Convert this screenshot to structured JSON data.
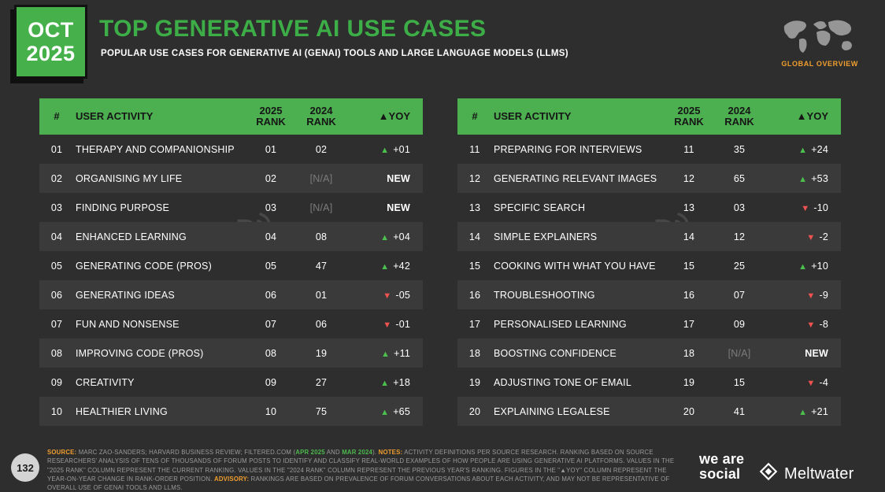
{
  "page": {
    "date_badge": {
      "month": "OCT",
      "year": "2025"
    },
    "title": "TOP GENERATIVE AI USE CASES",
    "subtitle": "POPULAR USE CASES FOR GENERATIVE AI (GENAI) TOOLS AND LARGE LANGUAGE MODELS (LLMS)",
    "region_label": "GLOBAL OVERVIEW",
    "page_number": "132"
  },
  "colors": {
    "accent_green": "#4caf50",
    "title_green": "#3dae47",
    "up_green": "#4cc04f",
    "down_red": "#ef5350",
    "label_orange": "#f09e2e",
    "background": "#2e2e2e"
  },
  "table_headers": {
    "num": "#",
    "activity": "USER ACTIVITY",
    "rank2025": "2025 RANK",
    "rank2024": "2024 RANK",
    "yoy": "▲YOY"
  },
  "chart_data": {
    "type": "table",
    "title": "TOP GENERATIVE AI USE CASES",
    "columns": [
      "#",
      "USER ACTIVITY",
      "2025 RANK",
      "2024 RANK",
      "▲YOY"
    ],
    "tables": [
      {
        "rows": [
          {
            "num": "01",
            "activity": "THERAPY AND COMPANIONSHIP",
            "rank2025": "01",
            "rank2024": "02",
            "yoy": "+01",
            "direction": "up"
          },
          {
            "num": "02",
            "activity": "ORGANISING MY LIFE",
            "rank2025": "02",
            "rank2024": "[N/A]",
            "yoy": "NEW",
            "direction": "new"
          },
          {
            "num": "03",
            "activity": "FINDING PURPOSE",
            "rank2025": "03",
            "rank2024": "[N/A]",
            "yoy": "NEW",
            "direction": "new"
          },
          {
            "num": "04",
            "activity": "ENHANCED LEARNING",
            "rank2025": "04",
            "rank2024": "08",
            "yoy": "+04",
            "direction": "up"
          },
          {
            "num": "05",
            "activity": "GENERATING CODE (PROS)",
            "rank2025": "05",
            "rank2024": "47",
            "yoy": "+42",
            "direction": "up"
          },
          {
            "num": "06",
            "activity": "GENERATING IDEAS",
            "rank2025": "06",
            "rank2024": "01",
            "yoy": "-05",
            "direction": "down"
          },
          {
            "num": "07",
            "activity": "FUN AND NONSENSE",
            "rank2025": "07",
            "rank2024": "06",
            "yoy": "-01",
            "direction": "down"
          },
          {
            "num": "08",
            "activity": "IMPROVING CODE (PROS)",
            "rank2025": "08",
            "rank2024": "19",
            "yoy": "+11",
            "direction": "up"
          },
          {
            "num": "09",
            "activity": "CREATIVITY",
            "rank2025": "09",
            "rank2024": "27",
            "yoy": "+18",
            "direction": "up"
          },
          {
            "num": "10",
            "activity": "HEALTHIER LIVING",
            "rank2025": "10",
            "rank2024": "75",
            "yoy": "+65",
            "direction": "up"
          }
        ]
      },
      {
        "rows": [
          {
            "num": "11",
            "activity": "PREPARING FOR INTERVIEWS",
            "rank2025": "11",
            "rank2024": "35",
            "yoy": "+24",
            "direction": "up"
          },
          {
            "num": "12",
            "activity": "GENERATING RELEVANT IMAGES",
            "rank2025": "12",
            "rank2024": "65",
            "yoy": "+53",
            "direction": "up"
          },
          {
            "num": "13",
            "activity": "SPECIFIC SEARCH",
            "rank2025": "13",
            "rank2024": "03",
            "yoy": "-10",
            "direction": "down"
          },
          {
            "num": "14",
            "activity": "SIMPLE EXPLAINERS",
            "rank2025": "14",
            "rank2024": "12",
            "yoy": "-2",
            "direction": "down"
          },
          {
            "num": "15",
            "activity": "COOKING WITH WHAT YOU HAVE",
            "rank2025": "15",
            "rank2024": "25",
            "yoy": "+10",
            "direction": "up"
          },
          {
            "num": "16",
            "activity": "TROUBLESHOOTING",
            "rank2025": "16",
            "rank2024": "07",
            "yoy": "-9",
            "direction": "down"
          },
          {
            "num": "17",
            "activity": "PERSONALISED LEARNING",
            "rank2025": "17",
            "rank2024": "09",
            "yoy": "-8",
            "direction": "down"
          },
          {
            "num": "18",
            "activity": "BOOSTING CONFIDENCE",
            "rank2025": "18",
            "rank2024": "[N/A]",
            "yoy": "NEW",
            "direction": "new"
          },
          {
            "num": "19",
            "activity": "ADJUSTING TONE OF EMAIL",
            "rank2025": "19",
            "rank2024": "15",
            "yoy": "-4",
            "direction": "down"
          },
          {
            "num": "20",
            "activity": "EXPLAINING LEGALESE",
            "rank2025": "20",
            "rank2024": "41",
            "yoy": "+21",
            "direction": "up"
          }
        ]
      }
    ]
  },
  "footer": {
    "source_segments": [
      {
        "text": "SOURCE:",
        "style": "label"
      },
      {
        "text": " MARC ZAO-SANDERS; HARVARD BUSINESS REVIEW; FILTERED.COM (",
        "style": "normal"
      },
      {
        "text": "APR 2025",
        "style": "link"
      },
      {
        "text": " AND ",
        "style": "normal"
      },
      {
        "text": "MAR 2024",
        "style": "link"
      },
      {
        "text": "). ",
        "style": "normal"
      },
      {
        "text": "NOTES:",
        "style": "label"
      },
      {
        "text": " ACTIVITY DEFINITIONS PER SOURCE RESEARCH. RANKING BASED ON SOURCE RESEARCHERS' ANALYSIS OF TENS OF THOUSANDS OF FORUM POSTS TO IDENTIFY AND CLASSIFY REAL-WORLD EXAMPLES OF HOW PEOPLE ARE USING GENERATIVE AI PLATFORMS. VALUES IN THE \"2025 RANK\" COLUMN REPRESENT THE CURRENT RANKING. VALUES IN THE \"2024 RANK\" COLUMN REPRESENT THE PREVIOUS YEAR'S RANKING. FIGURES IN THE \"▲YOY\" COLUMN REPRESENT THE YEAR-ON-YEAR CHANGE IN RANK-ORDER POSITION. ",
        "style": "normal"
      },
      {
        "text": "ADVISORY:",
        "style": "label"
      },
      {
        "text": " RANKINGS ARE BASED ON PREVALENCE OF FORUM CONVERSATIONS ABOUT EACH ACTIVITY, AND MAY NOT BE REPRESENTATIVE OF OVERALL USE OF GENAI TOOLS AND LLMS.",
        "style": "normal"
      }
    ],
    "we_are_social_lines": [
      "we are",
      "social"
    ],
    "meltwater_label": "Meltwater"
  },
  "icons": {
    "world_map": "world-map-icon",
    "watermark": "brand-watermark-icon",
    "meltwater_mark": "meltwater-logo-icon"
  }
}
